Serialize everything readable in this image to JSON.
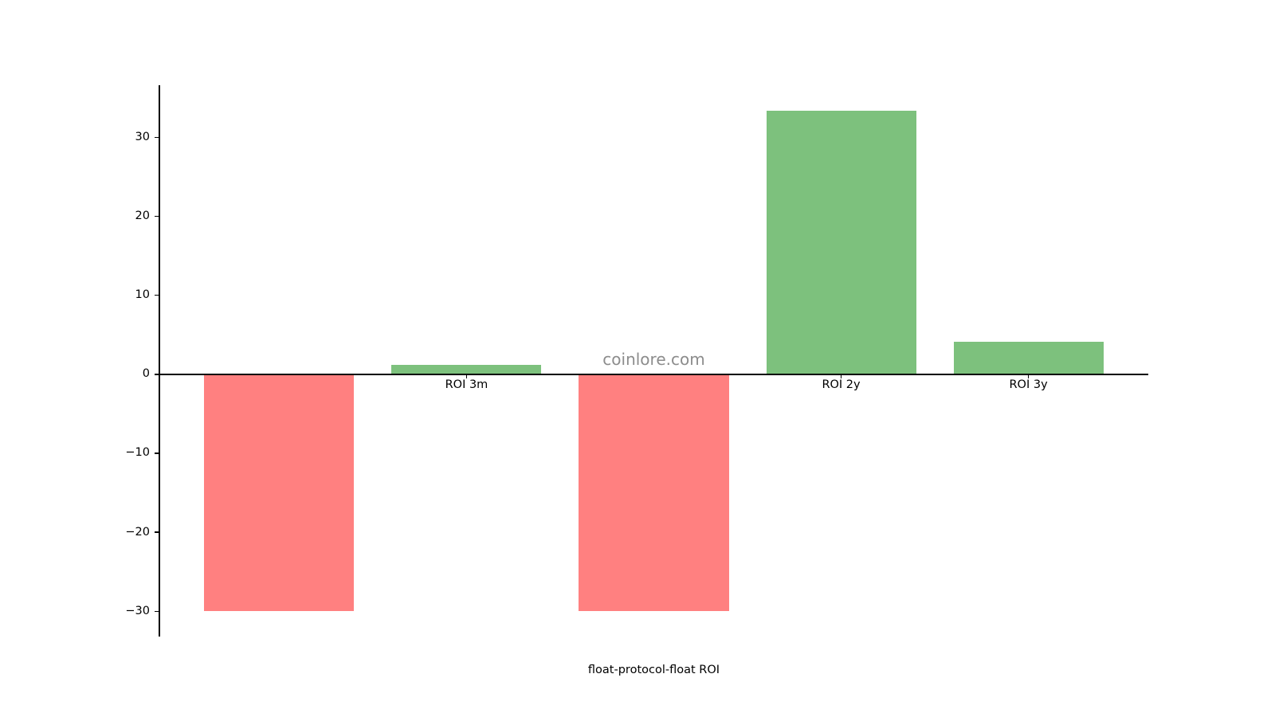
{
  "page": {
    "background": "#ffffff"
  },
  "watermark": {
    "text": "coinlore.com",
    "color": "#8c8c8c"
  },
  "footer_title": {
    "text": "float-protocol-float ROI",
    "color": "#000000"
  },
  "chart_data": {
    "type": "bar",
    "title": "float-protocol-float ROI",
    "watermark": "coinlore.com",
    "categories": [
      "",
      "ROI 3m",
      "",
      "ROI 2y",
      "ROI 3y"
    ],
    "values": [
      -30,
      1.2,
      -30,
      33.4,
      4.1
    ],
    "positive_color": "#7dc17d",
    "negative_color": "#ff8080",
    "axis_color": "#000000",
    "tick_label_color": "#000000",
    "yticks": [
      30,
      20,
      10,
      0,
      -10,
      -20,
      -30
    ],
    "ytick_labels": [
      "30",
      "20",
      "10",
      "0",
      "−10",
      "−20",
      "−30"
    ],
    "ylim": [
      -33.2,
      36.6
    ],
    "xlim": [
      -0.64,
      4.64
    ],
    "bar_width_fraction": 0.8,
    "grid": false,
    "legend": false,
    "xlabel": "",
    "ylabel": "",
    "note_occluded_labels": "x tick labels of the two negative (red) bars are hidden behind the bars"
  }
}
